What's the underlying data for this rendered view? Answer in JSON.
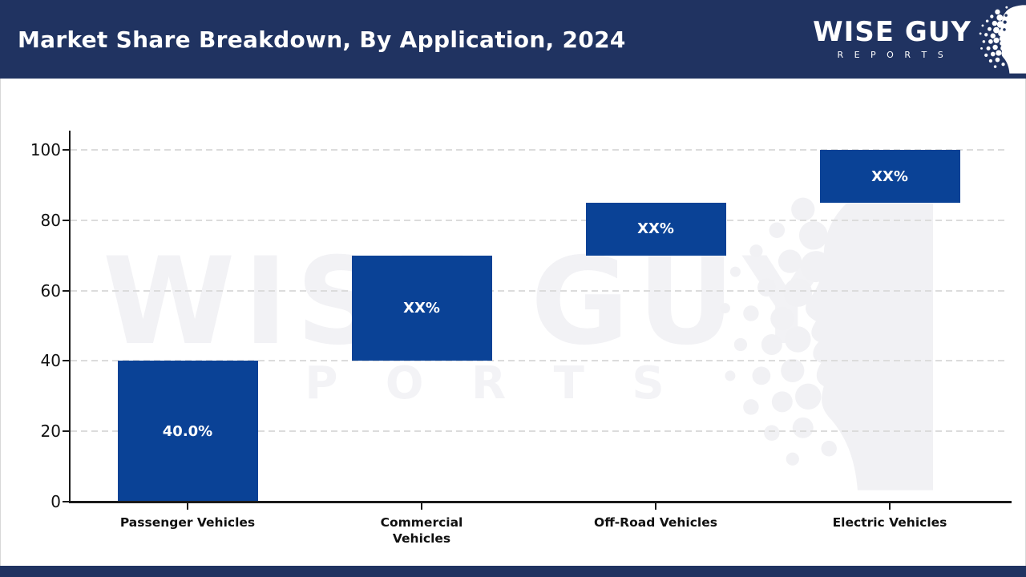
{
  "header": {
    "title": "Market Share Breakdown, By Application, 2024",
    "logo": {
      "line1": "WISE GUY",
      "line2": "R E P O R T S"
    }
  },
  "watermark": {
    "line1": "WISE GUY",
    "line2": "R E P O R T S"
  },
  "colors": {
    "header_bg": "#203361",
    "footer_bg": "#203361",
    "bar": "#0a4296",
    "bar_label": "#ffffff",
    "grid": "#dcdcdc",
    "axis": "#1a1a1a",
    "watermark": "#f2f2f5"
  },
  "chart_data": {
    "type": "bar",
    "variant": "waterfall",
    "title": "Market Share Breakdown, By Application, 2024",
    "categories": [
      "Passenger Vehicles",
      "Commercial\nVehicles",
      "Off-Road Vehicles",
      "Electric Vehicles"
    ],
    "series": [
      {
        "name": "Market Share",
        "segments": [
          {
            "category": "Passenger Vehicles",
            "start": 0,
            "end": 40,
            "label": "40.0%"
          },
          {
            "category": "Commercial Vehicles",
            "start": 40,
            "end": 70,
            "label": "XX%"
          },
          {
            "category": "Off-Road Vehicles",
            "start": 70,
            "end": 85,
            "label": "XX%"
          },
          {
            "category": "Electric Vehicles",
            "start": 85,
            "end": 100,
            "label": "XX%"
          }
        ]
      }
    ],
    "xlabel": "",
    "ylabel": "",
    "yticks": [
      0,
      20,
      40,
      60,
      80,
      100
    ],
    "ylim": [
      0,
      105.5
    ],
    "grid": "horizontal-dashed",
    "legend": "none"
  }
}
